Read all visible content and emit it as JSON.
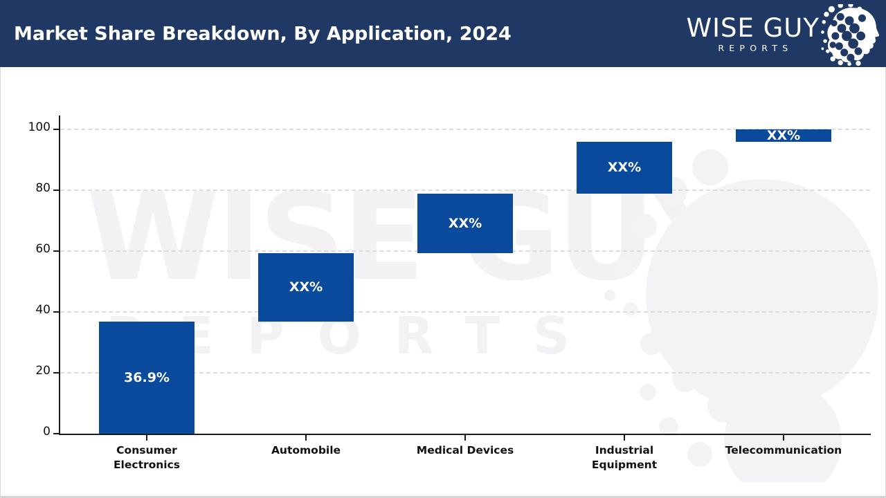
{
  "header": {
    "title": "Market Share Breakdown, By Application, 2024",
    "logo": {
      "line1": "WISE GUY",
      "line2": "REPORTS"
    }
  },
  "watermark": {
    "line1": "WISE GUY",
    "line2": "REPORTS"
  },
  "colors": {
    "header_bg": "#1f3864",
    "bar": "#0a4a9c",
    "bar_label": "#ffffff",
    "grid": "#dcdcdc",
    "axis": "#1a1a1a",
    "watermark": "#f2f2f4",
    "page_border": "#d4d4d4"
  },
  "chart_data": {
    "type": "bar",
    "subtype": "waterfall-breakdown",
    "title": "Market Share Breakdown, By Application, 2024",
    "units": "percent market share",
    "categories": [
      "Consumer Electronics",
      "Automobile",
      "Medical Devices",
      "Industrial Equipment",
      "Telecommunication"
    ],
    "categories_display": [
      "Consumer\nElectronics",
      "Automobile",
      "Medical Devices",
      "Industrial\nEquipment",
      "Telecommunication"
    ],
    "segments": [
      {
        "category": "Consumer Electronics",
        "start": 0,
        "end": 36.9,
        "label": "36.9%"
      },
      {
        "category": "Automobile",
        "start": 36.9,
        "end": 59.4,
        "label": "XX%"
      },
      {
        "category": "Medical Devices",
        "start": 59.4,
        "end": 78.9,
        "label": "XX%"
      },
      {
        "category": "Industrial Equipment",
        "start": 78.9,
        "end": 96.0,
        "label": "XX%"
      },
      {
        "category": "Telecommunication",
        "start": 96.0,
        "end": 100.0,
        "label": "XX%"
      }
    ],
    "xlabel": "",
    "ylabel": "",
    "yticks": [
      0,
      20,
      40,
      60,
      80,
      100
    ],
    "ylim": [
      0,
      105
    ],
    "grid": "horizontal-dashed",
    "legend": "none"
  }
}
